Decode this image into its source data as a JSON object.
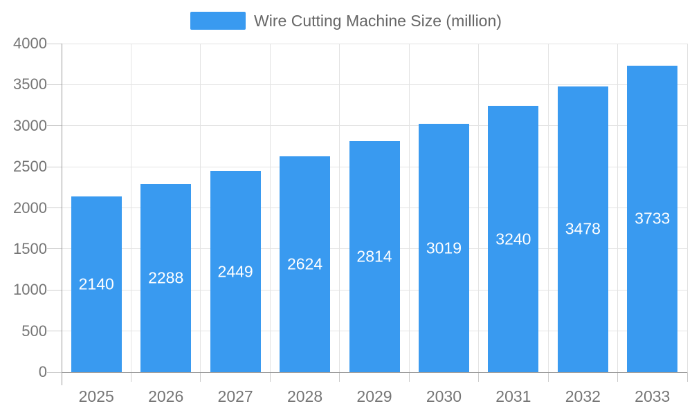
{
  "chart_data": {
    "type": "bar",
    "legend": "Wire Cutting Machine Size (million)",
    "categories": [
      "2025",
      "2026",
      "2027",
      "2028",
      "2029",
      "2030",
      "2031",
      "2032",
      "2033"
    ],
    "values": [
      2140,
      2288,
      2449,
      2624,
      2814,
      3019,
      3240,
      3478,
      3733
    ],
    "value_labels": [
      "2140",
      "2288",
      "2449",
      "2624",
      "2814",
      "3019",
      "3240",
      "3478",
      "3733"
    ],
    "y_tick_labels": [
      "0",
      "500",
      "1000",
      "1500",
      "2000",
      "2500",
      "3000",
      "3500",
      "4000"
    ],
    "ylim": [
      0,
      4000
    ],
    "ytick_step": 500,
    "grid": true,
    "legend_position": "top-center",
    "value_label_position": "inside-middle",
    "colors": {
      "bar": "#399AF0",
      "bar_value_text": "#ffffff",
      "gridline": "#e3e3e3",
      "axis_line": "#999999",
      "tick": "#cccccc",
      "tick_label_text": "#757575",
      "legend_text": "#666666",
      "background": "#ffffff"
    }
  }
}
